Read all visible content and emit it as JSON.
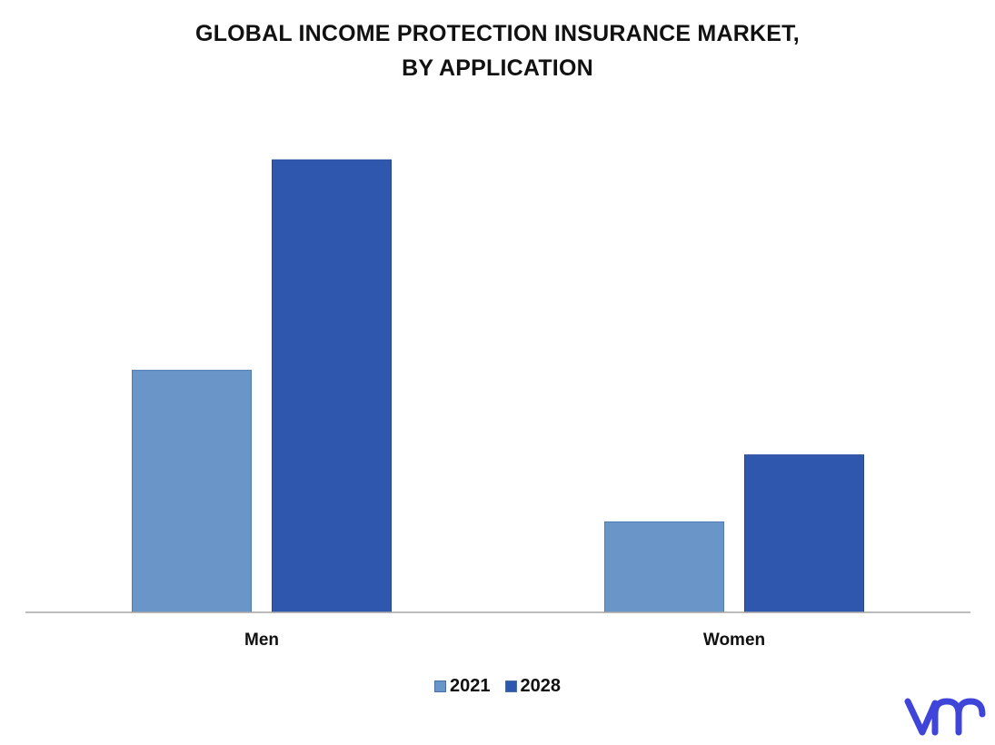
{
  "colors": {
    "series_2021": "#6a95c9",
    "series_2028": "#2e57ad",
    "axis": "#a6a6a6",
    "logo": "#3f45d8"
  },
  "logo_icon": "vmr-logo",
  "chart_data": {
    "type": "bar",
    "title_lines": [
      "GLOBAL INCOME PROTECTION INSURANCE MARKET,",
      "BY APPLICATION"
    ],
    "xlabel": "",
    "ylabel": "",
    "categories": [
      "Men",
      "Women"
    ],
    "series": [
      {
        "name": "2021",
        "values": [
          53.5,
          20.0
        ]
      },
      {
        "name": "2028",
        "values": [
          100,
          34.8
        ]
      }
    ],
    "ylim": [
      0,
      100
    ],
    "grid": false,
    "legend_position": "bottom-center"
  }
}
